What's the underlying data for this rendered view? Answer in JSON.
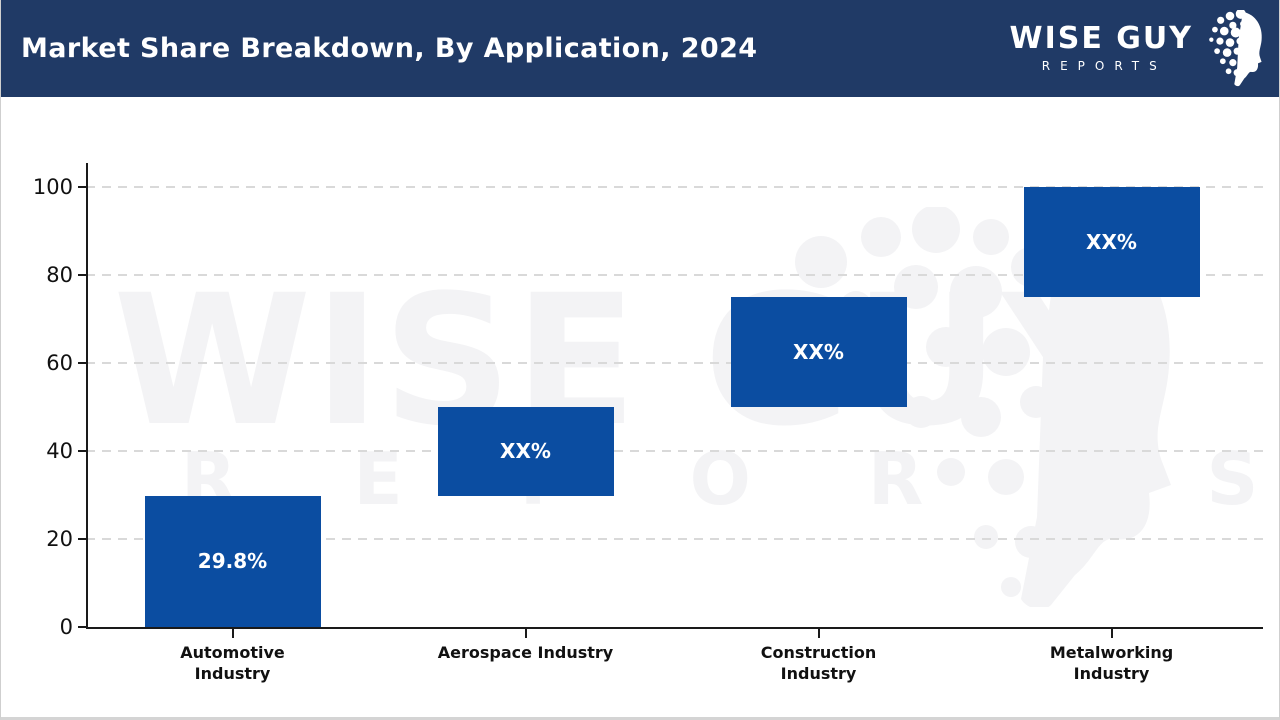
{
  "header": {
    "title": "Market Share Breakdown, By Application, 2024",
    "logo": {
      "line1": "WISE GUY",
      "line2": "REPORTS"
    }
  },
  "watermark": {
    "line1": "WISE GUY",
    "line2": "R E P O R T S"
  },
  "colors": {
    "header_bg": "#203a66",
    "bar": "#0b4da1",
    "bar_label": "#ffffff",
    "grid": "#d9d9d9",
    "axis": "#1a1a1a",
    "watermark": "#f3f3f5"
  },
  "chart_data": {
    "type": "bar",
    "subtype": "waterfall-stacked-segments",
    "title": "Market Share Breakdown, By Application, 2024",
    "categories": [
      "Automotive Industry",
      "Aerospace Industry",
      "Construction Industry",
      "Metalworking Industry"
    ],
    "bars": [
      {
        "category": "Automotive Industry",
        "label_lines": [
          "Automotive",
          "Industry"
        ],
        "base": 0,
        "top": 29.8,
        "label": "29.8%"
      },
      {
        "category": "Aerospace Industry",
        "label_lines": [
          "Aerospace Industry"
        ],
        "base": 29.8,
        "top": 50,
        "label": "XX%"
      },
      {
        "category": "Construction Industry",
        "label_lines": [
          "Construction",
          "Industry"
        ],
        "base": 50,
        "top": 75,
        "label": "XX%"
      },
      {
        "category": "Metalworking Industry",
        "label_lines": [
          "Metalworking",
          "Industry"
        ],
        "base": 75,
        "top": 100,
        "label": "XX%"
      }
    ],
    "ylim": [
      0,
      100
    ],
    "yticks": [
      0,
      20,
      40,
      60,
      80,
      100
    ],
    "xlabel": "",
    "ylabel": "",
    "grid": "horizontal-dashed",
    "legend": null
  }
}
